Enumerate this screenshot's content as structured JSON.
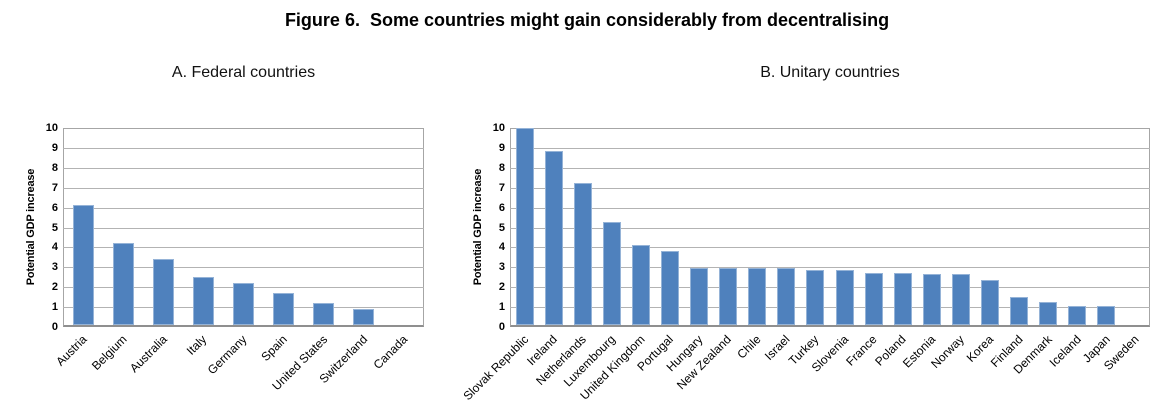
{
  "figure_title": "Figure 6.  Some countries might gain considerably from decentralising",
  "colors": {
    "bar": "#4f81bd",
    "bar_edge": "#95b3d7",
    "gridline": "#b3b3b3",
    "plot_border": "#a6a6a6",
    "axis_line": "#8f8f8f"
  },
  "chart_data": [
    {
      "type": "bar",
      "title": "A. Federal countries",
      "ylabel": "Potential GDP increase",
      "xlabel": "",
      "ylim": [
        0,
        10
      ],
      "y_ticks": [
        0,
        1,
        2,
        3,
        4,
        5,
        6,
        7,
        8,
        9,
        10
      ],
      "grid": true,
      "legend": "none",
      "categories": [
        "Austria",
        "Belgium",
        "Australia",
        "Italy",
        "Germany",
        "Spain",
        "United States",
        "Switzerland",
        "Canada"
      ],
      "values": [
        6.05,
        4.1,
        3.3,
        2.4,
        2.1,
        1.6,
        1.1,
        0.8,
        0
      ]
    },
    {
      "type": "bar",
      "title": "B. Unitary countries",
      "ylabel": "Potential GDP increase",
      "xlabel": "",
      "ylim": [
        0,
        10
      ],
      "y_ticks": [
        0,
        1,
        2,
        3,
        4,
        5,
        6,
        7,
        8,
        9,
        10
      ],
      "grid": true,
      "legend": "none",
      "categories": [
        "Slovak Republic",
        "Ireland",
        "Netherlands",
        "Luxembourg",
        "United Kingdom",
        "Portugal",
        "Hungary",
        "New Zealand",
        "Chile",
        "Israel",
        "Turkey",
        "Slovenia",
        "France",
        "Poland",
        "Estonia",
        "Norway",
        "Korea",
        "Finland",
        "Denmark",
        "Iceland",
        "Japan",
        "Sweden"
      ],
      "values": [
        9.9,
        8.75,
        7.15,
        5.2,
        4.0,
        3.7,
        2.85,
        2.85,
        2.85,
        2.85,
        2.75,
        2.75,
        2.6,
        2.6,
        2.55,
        2.55,
        2.25,
        1.4,
        1.15,
        0.95,
        0.95,
        0
      ]
    }
  ]
}
